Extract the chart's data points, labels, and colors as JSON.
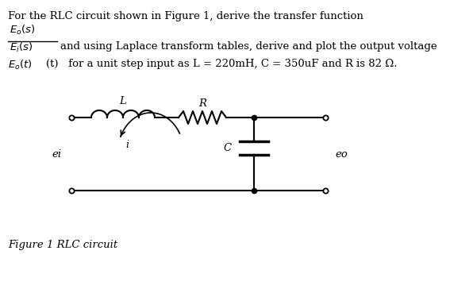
{
  "bg_color": "#ffffff",
  "text_color": "#000000",
  "line_color": "#000000",
  "fig_width": 5.67,
  "fig_height": 3.64,
  "line1": "For the RLC circuit shown in Figure 1, derive the transfer function",
  "frac_num": "E",
  "frac_num_sub": "o",
  "frac_den": "E",
  "frac_den_sub": "i",
  "text_after_frac": "and using Laplace transform tables, derive and plot the output voltage",
  "line_eo_prefix": "E",
  "line_eo_sub": "o",
  "line_eo_suffix": "(t)   for a unit step input as L = 220mH, C = 350uF and R is 82 Ω.",
  "fig_caption": "Figure 1 RLC circuit",
  "label_L": "L",
  "label_R": "R",
  "label_C": "C",
  "label_ei": "ei",
  "label_eo": "eo",
  "label_i": "i"
}
